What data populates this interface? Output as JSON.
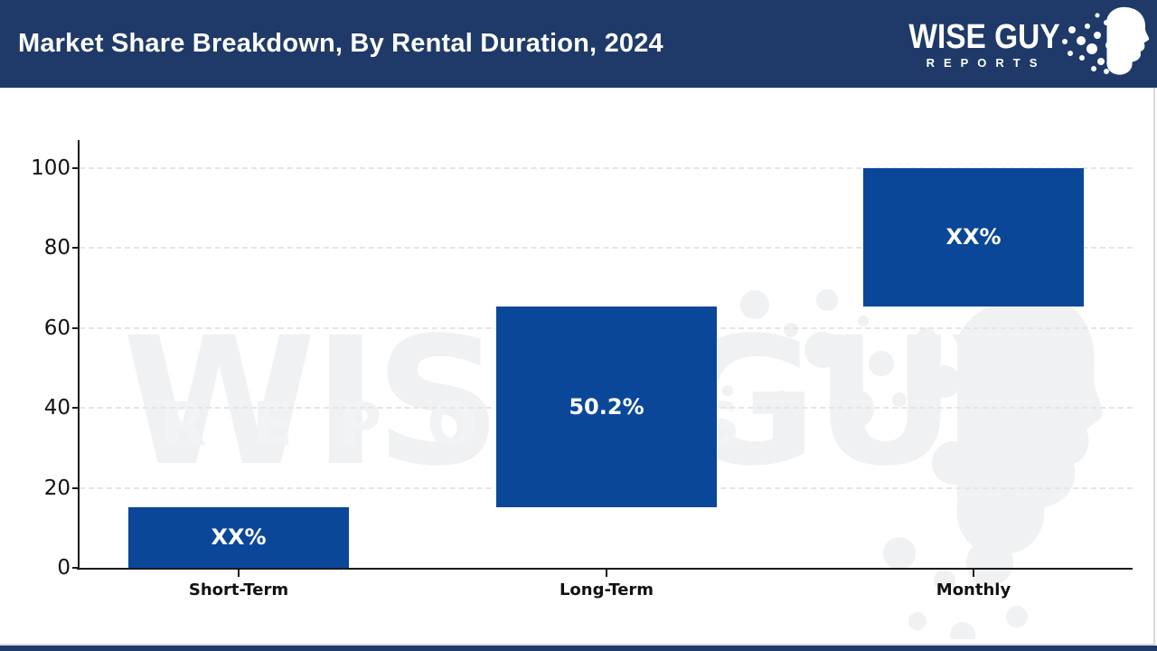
{
  "header": {
    "title": "Market Share Breakdown, By Rental Duration, 2024",
    "logo": {
      "line1": "WISE GUY",
      "line2": "REPORTS"
    }
  },
  "watermark": {
    "line1": "WISE GUY",
    "line2": "REPORTS"
  },
  "colors": {
    "header_bg": "#1f3a68",
    "bar": "#0b4799",
    "bar_label": "#ffffff",
    "grid": "#e5e5e7",
    "axis": "#1a1a1a",
    "watermark": "#f0f1f3"
  },
  "chart_data": {
    "type": "bar",
    "subtype": "waterfall",
    "title": "Market Share Breakdown, By Rental Duration, 2024",
    "categories": [
      "Short-Term",
      "Long-Term",
      "Monthly"
    ],
    "segments": [
      {
        "category": "Short-Term",
        "start": 0,
        "end": 15.2,
        "label": "XX%"
      },
      {
        "category": "Long-Term",
        "start": 15.2,
        "end": 65.4,
        "label": "50.2%"
      },
      {
        "category": "Monthly",
        "start": 65.4,
        "end": 100,
        "label": "XX%"
      }
    ],
    "yticks": [
      0,
      20,
      40,
      60,
      80,
      100
    ],
    "ylim": [
      0,
      107
    ],
    "xlabel": "",
    "ylabel": "",
    "grid": "horizontal-dashed",
    "legend": "none",
    "bar_color": "#0b4799",
    "label_color": "#ffffff"
  }
}
